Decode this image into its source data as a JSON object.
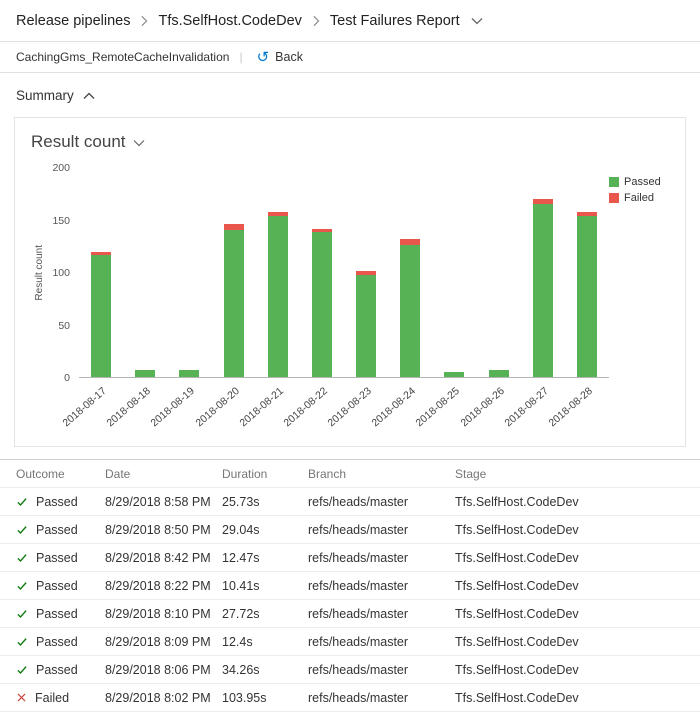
{
  "breadcrumb": {
    "items": [
      "Release pipelines",
      "Tfs.SelfHost.CodeDev",
      "Test Failures Report"
    ]
  },
  "toolbar": {
    "run_name": "CachingGms_RemoteCacheInvalidation",
    "separator": "|",
    "back_label": "Back",
    "back_icon_glyph": "↺"
  },
  "summary": {
    "title": "Summary"
  },
  "chart_data": {
    "type": "bar",
    "stacked": true,
    "title": "Result count",
    "ylabel": "Result count",
    "ylim": [
      0,
      200
    ],
    "yticks": [
      0,
      50,
      100,
      150,
      200
    ],
    "grid": false,
    "legend_position": "right",
    "categories": [
      "2018-08-17",
      "2018-08-18",
      "2018-08-19",
      "2018-08-20",
      "2018-08-21",
      "2018-08-22",
      "2018-08-23",
      "2018-08-24",
      "2018-08-25",
      "2018-08-26",
      "2018-08-27",
      "2018-08-28"
    ],
    "series": [
      {
        "name": "Passed",
        "color": "#57b256",
        "values": [
          116,
          7,
          7,
          140,
          153,
          138,
          97,
          126,
          5,
          7,
          165,
          153
        ]
      },
      {
        "name": "Failed",
        "color": "#e8564c",
        "values": [
          3,
          0,
          0,
          6,
          4,
          3,
          4,
          5,
          0,
          0,
          5,
          4
        ]
      }
    ]
  },
  "table": {
    "columns": [
      "Outcome",
      "Date",
      "Duration",
      "Branch",
      "Stage"
    ],
    "rows": [
      {
        "outcome": "Passed",
        "date": "8/29/2018 8:58 PM",
        "duration": "25.73s",
        "branch": "refs/heads/master",
        "stage": "Tfs.SelfHost.CodeDev"
      },
      {
        "outcome": "Passed",
        "date": "8/29/2018 8:50 PM",
        "duration": "29.04s",
        "branch": "refs/heads/master",
        "stage": "Tfs.SelfHost.CodeDev"
      },
      {
        "outcome": "Passed",
        "date": "8/29/2018 8:42 PM",
        "duration": "12.47s",
        "branch": "refs/heads/master",
        "stage": "Tfs.SelfHost.CodeDev"
      },
      {
        "outcome": "Passed",
        "date": "8/29/2018 8:22 PM",
        "duration": "10.41s",
        "branch": "refs/heads/master",
        "stage": "Tfs.SelfHost.CodeDev"
      },
      {
        "outcome": "Passed",
        "date": "8/29/2018 8:10 PM",
        "duration": "27.72s",
        "branch": "refs/heads/master",
        "stage": "Tfs.SelfHost.CodeDev"
      },
      {
        "outcome": "Passed",
        "date": "8/29/2018 8:09 PM",
        "duration": "12.4s",
        "branch": "refs/heads/master",
        "stage": "Tfs.SelfHost.CodeDev"
      },
      {
        "outcome": "Passed",
        "date": "8/29/2018 8:06 PM",
        "duration": "34.26s",
        "branch": "refs/heads/master",
        "stage": "Tfs.SelfHost.CodeDev"
      },
      {
        "outcome": "Failed",
        "date": "8/29/2018 8:02 PM",
        "duration": "103.95s",
        "branch": "refs/heads/master",
        "stage": "Tfs.SelfHost.CodeDev"
      }
    ]
  },
  "colors": {
    "passed_bar": "#57b256",
    "failed_bar": "#e8564c",
    "passed_icon": "#107c10",
    "failed_icon": "#cd4a45",
    "accent": "#0078d4"
  }
}
